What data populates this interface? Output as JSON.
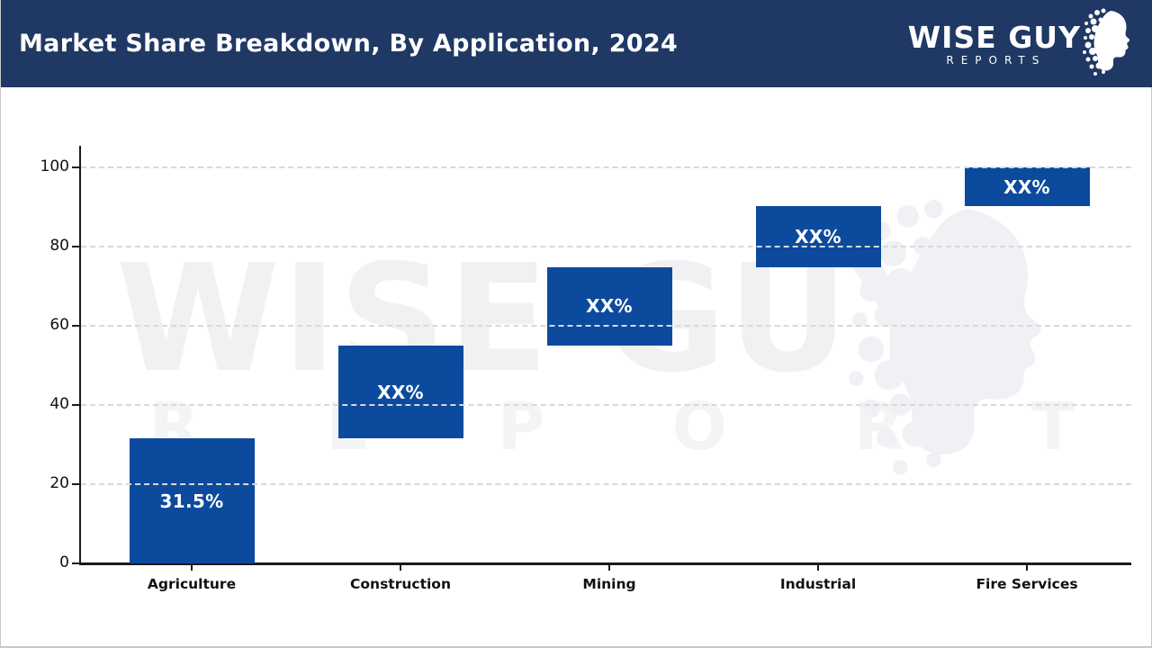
{
  "header": {
    "title": "Market Share Breakdown, By Application, 2024",
    "bg_color": "#1f3864",
    "logo": {
      "line1": "WISE GUY",
      "line2": "REPORTS",
      "face_icon": "face-profile-dots-icon"
    }
  },
  "watermark": {
    "line1": "WISE GUY.",
    "line2": "R E P O R T S",
    "face_icon": "face-profile-dots-icon",
    "color": "#f1f2f4"
  },
  "chart_data": {
    "type": "bar",
    "subtype": "waterfall",
    "title": "Market Share Breakdown, By Application, 2024",
    "categories": [
      "Agriculture",
      "Construction",
      "Mining",
      "Industrial",
      "Fire Services"
    ],
    "bars": [
      {
        "category": "Agriculture",
        "start": 0,
        "end": 31.5,
        "label": "31.5%"
      },
      {
        "category": "Construction",
        "start": 31.5,
        "end": 55.0,
        "label": "XX%"
      },
      {
        "category": "Mining",
        "start": 55.0,
        "end": 74.8,
        "label": "XX%"
      },
      {
        "category": "Industrial",
        "start": 74.8,
        "end": 90.2,
        "label": "XX%"
      },
      {
        "category": "Fire Services",
        "start": 90.2,
        "end": 100,
        "label": "XX%"
      }
    ],
    "yticks": [
      0,
      20,
      40,
      60,
      80,
      100
    ],
    "ylim": [
      0,
      105
    ],
    "xlabel": "",
    "ylabel": "",
    "grid": "dashed-horizontal-over-bars",
    "legend": "none",
    "bar_color": "#0c4a9e",
    "bar_label_color": "#ffffff",
    "axis_color": "#1a1a1a",
    "grid_color": "#d9d9d9"
  }
}
